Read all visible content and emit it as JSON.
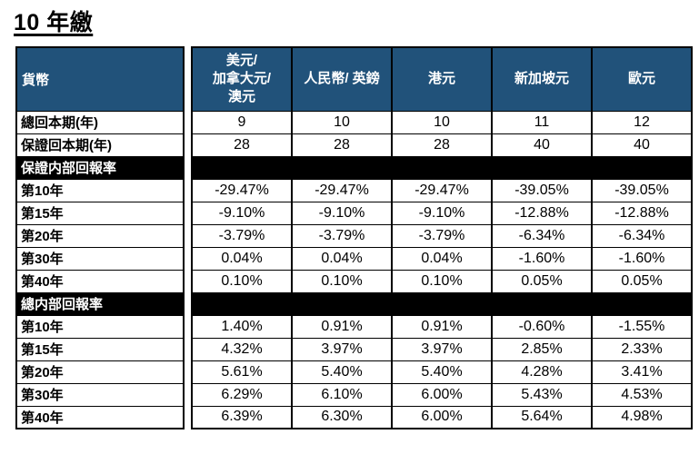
{
  "title": "10 年繳",
  "colors": {
    "header_bg": "#21527A",
    "header_fg": "#FFFFFF",
    "section_bg": "#000000",
    "section_fg": "#FFFFFF",
    "border": "#000000",
    "body_text": "#000000"
  },
  "table": {
    "corner_header": "貨幣",
    "columns": [
      "美元/\n加拿大元/\n澳元",
      "人民幣/ 英鎊",
      "港元",
      "新加坡元",
      "歐元"
    ],
    "rows": [
      {
        "type": "data",
        "label": "總回本期(年)",
        "values": [
          "9",
          "10",
          "10",
          "11",
          "12"
        ]
      },
      {
        "type": "data",
        "label": "保證回本期(年)",
        "values": [
          "28",
          "28",
          "28",
          "40",
          "40"
        ]
      },
      {
        "type": "section",
        "label": "保證内部回報率",
        "values": []
      },
      {
        "type": "data",
        "label": "第10年",
        "values": [
          "-29.47%",
          "-29.47%",
          "-29.47%",
          "-39.05%",
          "-39.05%"
        ]
      },
      {
        "type": "data",
        "label": "第15年",
        "values": [
          "-9.10%",
          "-9.10%",
          "-9.10%",
          "-12.88%",
          "-12.88%"
        ]
      },
      {
        "type": "data",
        "label": "第20年",
        "values": [
          "-3.79%",
          "-3.79%",
          "-3.79%",
          "-6.34%",
          "-6.34%"
        ]
      },
      {
        "type": "data",
        "label": "第30年",
        "values": [
          "0.04%",
          "0.04%",
          "0.04%",
          "-1.60%",
          "-1.60%"
        ]
      },
      {
        "type": "data",
        "label": "第40年",
        "values": [
          "0.10%",
          "0.10%",
          "0.10%",
          "0.05%",
          "0.05%"
        ]
      },
      {
        "type": "section",
        "label": "總内部回報率",
        "values": []
      },
      {
        "type": "data",
        "label": "第10年",
        "values": [
          "1.40%",
          "0.91%",
          "0.91%",
          "-0.60%",
          "-1.55%"
        ]
      },
      {
        "type": "data",
        "label": "第15年",
        "values": [
          "4.32%",
          "3.97%",
          "3.97%",
          "2.85%",
          "2.33%"
        ]
      },
      {
        "type": "data",
        "label": "第20年",
        "values": [
          "5.61%",
          "5.40%",
          "5.40%",
          "4.28%",
          "3.41%"
        ]
      },
      {
        "type": "data",
        "label": "第30年",
        "values": [
          "6.29%",
          "6.10%",
          "6.00%",
          "5.43%",
          "4.53%"
        ]
      },
      {
        "type": "data",
        "label": "第40年",
        "values": [
          "6.39%",
          "6.30%",
          "6.00%",
          "5.64%",
          "4.98%"
        ]
      }
    ]
  }
}
